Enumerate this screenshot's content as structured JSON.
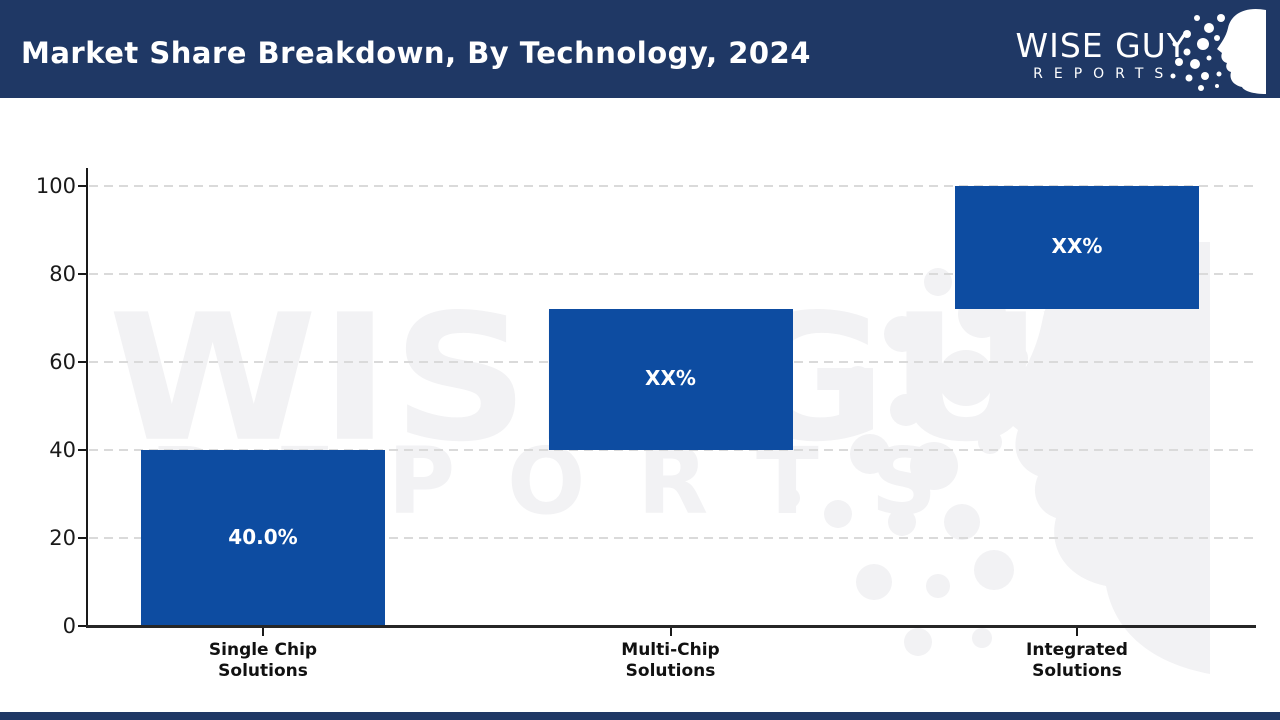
{
  "header": {
    "title": "Market Share Breakdown, By Technology, 2024",
    "background_color": "#1f3865",
    "logo": {
      "line1": "WISE GUY",
      "line2": "REPORTS"
    }
  },
  "watermark": {
    "line1": "WISE GUY",
    "line2": "REPORTS",
    "color": "#f2f2f4"
  },
  "chart_data": {
    "type": "bar",
    "subtype": "floating-waterfall",
    "title": "Market Share Breakdown, By Technology, 2024",
    "categories": [
      {
        "line1": "Single Chip",
        "line2": "Solutions"
      },
      {
        "line1": "Multi-Chip",
        "line2": "Solutions"
      },
      {
        "line1": "Integrated",
        "line2": "Solutions"
      }
    ],
    "segments": [
      {
        "start": 0,
        "end": 40,
        "label": "40.0%"
      },
      {
        "start": 40,
        "end": 72,
        "label": "XX%"
      },
      {
        "start": 72,
        "end": 100,
        "label": "XX%"
      }
    ],
    "yticks": [
      0,
      20,
      40,
      60,
      80,
      100
    ],
    "ylim": [
      0,
      104
    ],
    "xlabel": "",
    "ylabel": "",
    "bar_color": "#0d4ca1",
    "bar_label_color": "#ffffff",
    "axis_color": "#1a1a1a",
    "grid": {
      "horizontal": true,
      "style": "dashed",
      "color": "#dadada"
    },
    "legend": "none"
  }
}
